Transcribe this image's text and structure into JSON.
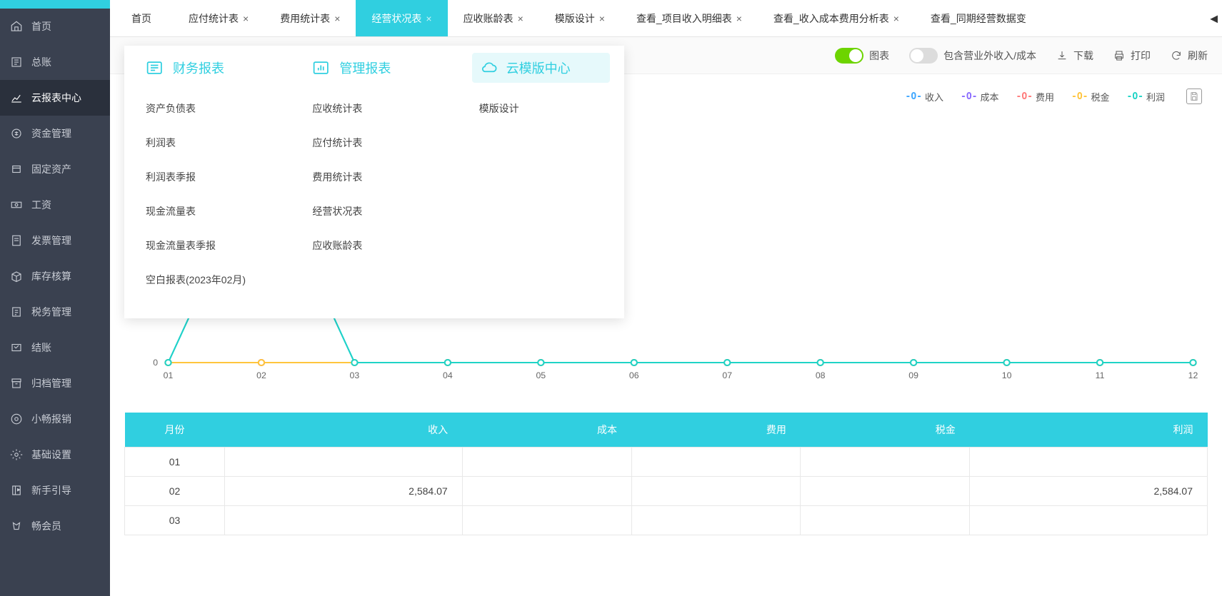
{
  "sidebar": {
    "top_color": "#30cfe0",
    "items": [
      {
        "label": "首页",
        "icon": "home"
      },
      {
        "label": "总账",
        "icon": "ledger"
      },
      {
        "label": "云报表中心",
        "icon": "chart",
        "active": true
      },
      {
        "label": "资金管理",
        "icon": "money"
      },
      {
        "label": "固定资产",
        "icon": "asset"
      },
      {
        "label": "工资",
        "icon": "salary"
      },
      {
        "label": "发票管理",
        "icon": "invoice"
      },
      {
        "label": "库存核算",
        "icon": "inventory"
      },
      {
        "label": "税务管理",
        "icon": "tax"
      },
      {
        "label": "结账",
        "icon": "close"
      },
      {
        "label": "归档管理",
        "icon": "archive"
      },
      {
        "label": "小畅报销",
        "icon": "reimburse"
      },
      {
        "label": "基础设置",
        "icon": "settings"
      },
      {
        "label": "新手引导",
        "icon": "guide"
      },
      {
        "label": "畅会员",
        "icon": "vip"
      }
    ]
  },
  "tabs": [
    {
      "label": "首页",
      "closable": false
    },
    {
      "label": "应付统计表",
      "closable": true
    },
    {
      "label": "费用统计表",
      "closable": true
    },
    {
      "label": "经营状况表",
      "closable": true,
      "active": true
    },
    {
      "label": "应收账龄表",
      "closable": true
    },
    {
      "label": "模版设计",
      "closable": true
    },
    {
      "label": "查看_项目收入明细表",
      "closable": true
    },
    {
      "label": "查看_收入成本费用分析表",
      "closable": true
    },
    {
      "label": "查看_同期经营数据变",
      "closable": false
    }
  ],
  "toolbar": {
    "chart_toggle_on": true,
    "chart_label": "图表",
    "include_toggle_on": false,
    "include_label": "包含营业外收入/成本",
    "download": "下载",
    "print": "打印",
    "refresh": "刷新"
  },
  "mega_menu": {
    "cols": [
      {
        "title": "财务报表",
        "icon": "fin-report",
        "highlight": false,
        "items": [
          "资产负债表",
          "利润表",
          "利润表季报",
          "现金流量表",
          "现金流量表季报",
          "空白报表(2023年02月)"
        ]
      },
      {
        "title": "管理报表",
        "icon": "mgmt-report",
        "highlight": false,
        "items": [
          "应收统计表",
          "应付统计表",
          "费用统计表",
          "经营状况表",
          "应收账龄表"
        ]
      },
      {
        "title": "云模版中心",
        "icon": "cloud-template",
        "highlight": true,
        "items": [
          "模版设计"
        ]
      }
    ]
  },
  "chart": {
    "type": "line",
    "legend": [
      {
        "label": "收入",
        "color": "#3fa7ff"
      },
      {
        "label": "成本",
        "color": "#8a6cff"
      },
      {
        "label": "费用",
        "color": "#ff7b7b"
      },
      {
        "label": "税金",
        "color": "#ffc53d"
      },
      {
        "label": "利润",
        "color": "#1fd4c6"
      }
    ],
    "x_labels": [
      "01",
      "02",
      "03",
      "04",
      "05",
      "06",
      "07",
      "08",
      "09",
      "10",
      "11",
      "12"
    ],
    "y_label_at_zero": "0",
    "series": {
      "收入": [
        0,
        2584.07,
        0,
        0,
        0,
        0,
        0,
        0,
        0,
        0,
        0,
        0
      ],
      "成本": [
        0,
        0,
        0,
        0,
        0,
        0,
        0,
        0,
        0,
        0,
        0,
        0
      ],
      "费用": [
        0,
        0,
        0,
        0,
        0,
        0,
        0,
        0,
        0,
        0,
        0,
        0
      ],
      "税金": [
        0,
        0,
        0,
        0,
        0,
        0,
        0,
        0,
        0,
        0,
        0,
        0
      ],
      "利润": [
        0,
        2584.07,
        0,
        0,
        0,
        0,
        0,
        0,
        0,
        0,
        0,
        0
      ]
    },
    "ylim": [
      0,
      3000
    ],
    "marker_radius": 4,
    "line_width": 2,
    "grid_color": "#e9e9e9",
    "axis_color": "#cccccc",
    "label_color": "#666666",
    "label_fontsize": 12
  },
  "table": {
    "columns": [
      "月份",
      "收入",
      "成本",
      "费用",
      "税金",
      "利润"
    ],
    "rows": [
      {
        "month": "01",
        "income": "",
        "cost": "",
        "fee": "",
        "tax": "",
        "profit": ""
      },
      {
        "month": "02",
        "income": "2,584.07",
        "cost": "",
        "fee": "",
        "tax": "",
        "profit": "2,584.07"
      },
      {
        "month": "03",
        "income": "",
        "cost": "",
        "fee": "",
        "tax": "",
        "profit": ""
      }
    ],
    "header_bg": "#30cfe0",
    "header_fg": "#ffffff",
    "border_color": "#e8e8e8"
  }
}
